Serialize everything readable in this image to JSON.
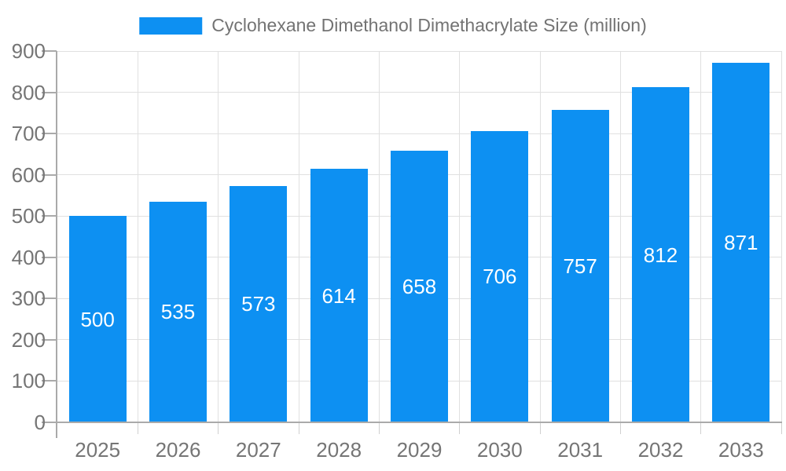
{
  "chart_data": {
    "type": "bar",
    "title": "Cyclohexane Dimethanol Dimethacrylate Size (million)",
    "categories": [
      "2025",
      "2026",
      "2027",
      "2028",
      "2029",
      "2030",
      "2031",
      "2032",
      "2033"
    ],
    "values": [
      500,
      535,
      573,
      614,
      658,
      706,
      757,
      812,
      871
    ],
    "xlabel": "",
    "ylabel": "",
    "ylim": [
      0,
      900
    ],
    "yticks": [
      0,
      100,
      200,
      300,
      400,
      500,
      600,
      700,
      800,
      900
    ],
    "grid": true,
    "legend_position": "top-center",
    "colors": {
      "bar": "#0d90f2",
      "value_label": "#ffffff",
      "grid_line": "#e0e0e0",
      "axis_line": "#aaaaaa",
      "minor_tick": "#d0d0d0",
      "tick_text": "#757575",
      "legend_text": "#737373",
      "background": "#ffffff"
    }
  }
}
